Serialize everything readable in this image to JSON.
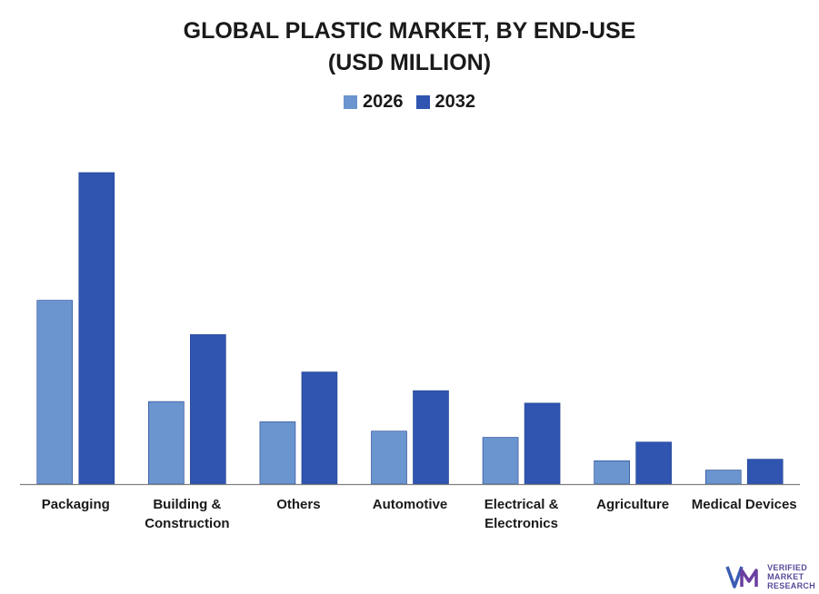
{
  "title_lines": [
    "GLOBAL PLASTIC MARKET, BY END-USE",
    "(USD MILLION)"
  ],
  "colors": {
    "s2026": "#6a95cf",
    "s2032": "#2f55b0",
    "axis": "#7f7f7f",
    "text": "#1a1a1a"
  },
  "chart_data": {
    "type": "bar",
    "title": "GLOBAL PLASTIC MARKET, BY END-USE (USD MILLION)",
    "xlabel": "",
    "ylabel": "",
    "categories": [
      [
        "Packaging"
      ],
      [
        "Building &",
        "Construction"
      ],
      [
        "Others"
      ],
      [
        "Automotive"
      ],
      [
        "Electrical &",
        "Electronics"
      ],
      [
        "Agriculture"
      ],
      [
        "Medical Devices"
      ]
    ],
    "series": [
      {
        "name": "2026",
        "values": [
          59,
          26.5,
          20,
          17,
          15,
          7.5,
          4.5
        ]
      },
      {
        "name": "2032",
        "values": [
          100,
          48,
          36,
          30,
          26,
          13.5,
          8
        ]
      }
    ],
    "ylim": [
      0,
      100
    ],
    "grid": false,
    "legend": "top-center"
  },
  "logo": {
    "lines": [
      "VERIFIED",
      "MARKET",
      "RESEARCH"
    ]
  }
}
